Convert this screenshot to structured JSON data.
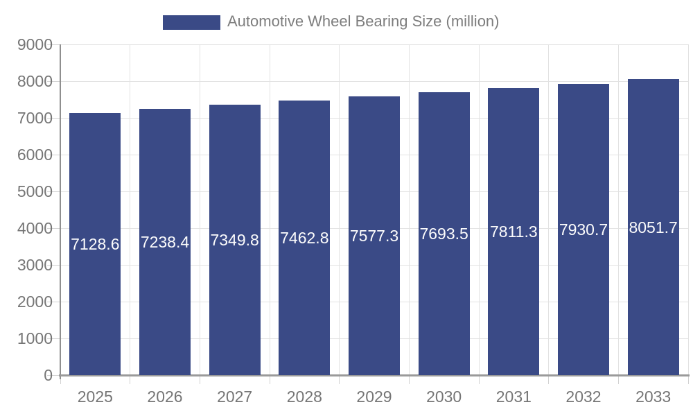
{
  "chart_data": {
    "type": "bar",
    "title": "",
    "legend": {
      "label": "Automotive Wheel Bearing Size (million)",
      "position": "top"
    },
    "categories": [
      "2025",
      "2026",
      "2027",
      "2028",
      "2029",
      "2030",
      "2031",
      "2032",
      "2033"
    ],
    "series": [
      {
        "name": "Automotive Wheel Bearing Size (million)",
        "values": [
          7128.6,
          7238.4,
          7349.8,
          7462.8,
          7577.3,
          7693.5,
          7811.3,
          7930.7,
          8051.7
        ]
      }
    ],
    "value_labels": [
      "7128.6",
      "7238.4",
      "7349.8",
      "7462.8",
      "7577.3",
      "7693.5",
      "7811.3",
      "7930.7",
      "8051.7"
    ],
    "xlabel": "",
    "ylabel": "",
    "ylim": [
      0,
      9000
    ],
    "y_ticks": [
      0,
      1000,
      2000,
      3000,
      4000,
      5000,
      6000,
      7000,
      8000,
      9000
    ],
    "grid": true,
    "bar_labels_inside": true,
    "colors": {
      "bar": "#3A4A86",
      "grid_line": "#E2E2E2",
      "y_axis_line": "#8F8F8F",
      "x_axis_line": "#9A9A9A",
      "tick_mark": "#D2D2D2",
      "tick_text": "#757575",
      "legend_text": "#7D7D7D",
      "bar_label_text": "#FCFCFC",
      "background": "#FFFFFF"
    }
  }
}
